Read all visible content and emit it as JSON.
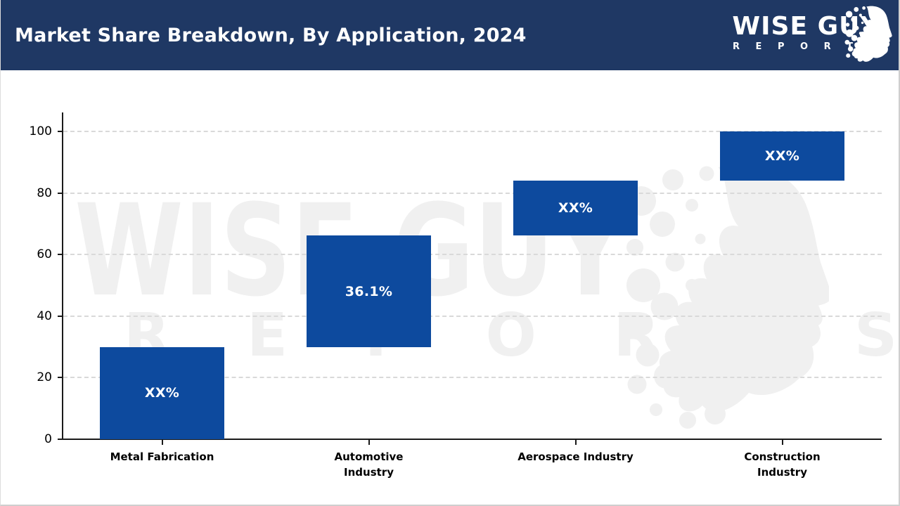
{
  "header": {
    "title": "Market Share Breakdown, By Application, 2024",
    "logo": {
      "line1": "WISE GUY",
      "line2": "REPORTS"
    }
  },
  "watermark": {
    "line1": "WISE GUY",
    "line2": "REPORTS"
  },
  "chart_data": {
    "type": "bar",
    "subtype": "waterfall",
    "title": "Market Share Breakdown, By Application, 2024",
    "categories": [
      "Metal Fabrication",
      "Automotive Industry",
      "Aerospace Industry",
      "Construction Industry"
    ],
    "category_lines": [
      [
        "Metal Fabrication"
      ],
      [
        "Automotive",
        "Industry"
      ],
      [
        "Aerospace Industry"
      ],
      [
        "Construction",
        "Industry"
      ]
    ],
    "segments": [
      {
        "category": "Metal Fabrication",
        "start": 0,
        "end": 30,
        "label": "XX%"
      },
      {
        "category": "Automotive Industry",
        "start": 30,
        "end": 66.1,
        "label": "36.1%",
        "value": 36.1
      },
      {
        "category": "Aerospace Industry",
        "start": 66.1,
        "end": 84,
        "label": "XX%"
      },
      {
        "category": "Construction Industry",
        "start": 84,
        "end": 100,
        "label": "XX%"
      }
    ],
    "yticks": [
      0,
      20,
      40,
      60,
      80,
      100
    ],
    "ylim": [
      0,
      106
    ],
    "xlabel": "",
    "ylabel": "",
    "grid": "horizontal-dashed",
    "legend": "none",
    "bar_color": "#0d4a9e",
    "bar_label_color": "#ffffff"
  },
  "colors": {
    "header_bg": "#1f3864",
    "bar": "#0d4a9e",
    "gridline": "#d9d9d9",
    "axis": "#1a1a1a",
    "watermark": "#f0f0f0",
    "page_border": "#cfcfcf"
  }
}
